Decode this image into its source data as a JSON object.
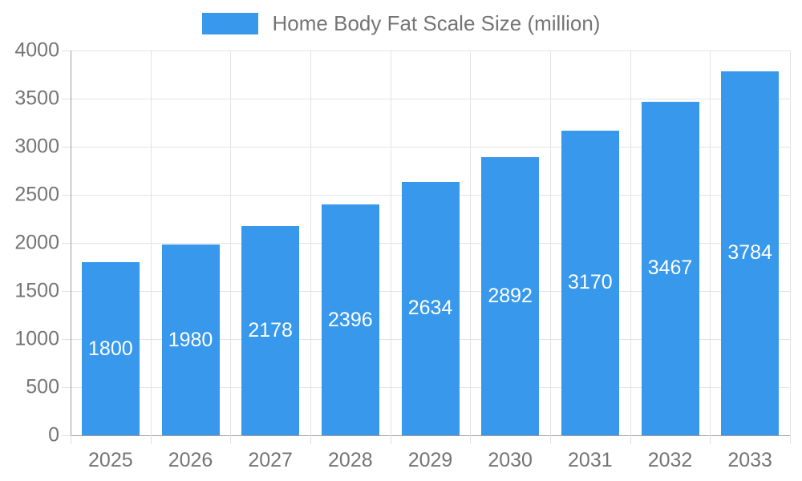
{
  "chart_data": {
    "type": "bar",
    "title": "Home Body Fat Scale Size (million)",
    "categories": [
      "2025",
      "2026",
      "2027",
      "2028",
      "2029",
      "2030",
      "2031",
      "2032",
      "2033"
    ],
    "values": [
      1800,
      1980,
      2178,
      2396,
      2634,
      2892,
      3170,
      3467,
      3784
    ],
    "value_labels": [
      "1800",
      "1980",
      "2178",
      "2396",
      "2634",
      "2892",
      "3170",
      "3467",
      "3784"
    ],
    "xlabel": "",
    "ylabel": "",
    "ylim": [
      0,
      4000
    ],
    "ytick_step": 500,
    "ytick_labels": [
      "0",
      "500",
      "1000",
      "1500",
      "2000",
      "2500",
      "3000",
      "3500",
      "4000"
    ],
    "grid": true,
    "legend_position": "top-center",
    "colors": {
      "bar": "#3899ec",
      "gridline": "#e3e3e3",
      "axis_line": "#9e9e9e",
      "tick": "#e0e0e0",
      "text": "#757575",
      "bar_label_text": "#ffffff",
      "background": "#ffffff"
    }
  },
  "layout_labels": {
    "legend_name": "series-legend"
  }
}
